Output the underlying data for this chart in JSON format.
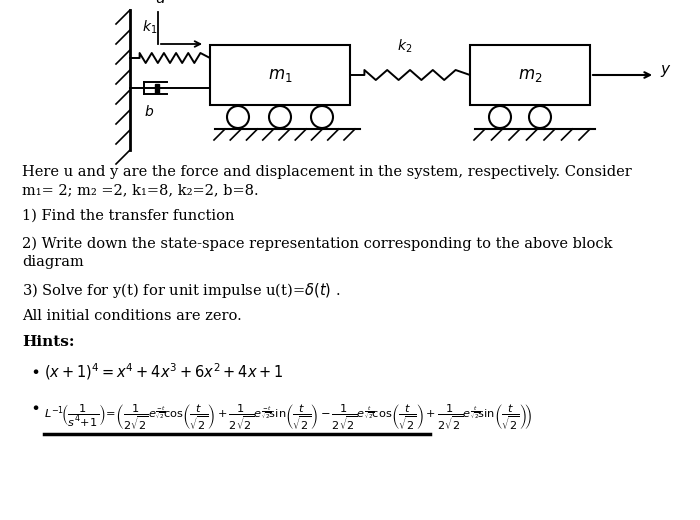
{
  "background_color": "#ffffff",
  "fig_width": 7.0,
  "fig_height": 5.2,
  "dpi": 100,
  "line1": "Here u and y are the force and displacement in the system, respectively. Consider",
  "line2": "m₁= 2; m₂ =2, k₁=8, k₂=2, b=8.",
  "item1": "1) Find the transfer function",
  "item2": "2) Write down the state-space representation corresponding to the above block",
  "item2b": "diagram",
  "item4": "All initial conditions are zero.",
  "hints_label": "Hints:",
  "font_size_body": 10.5
}
